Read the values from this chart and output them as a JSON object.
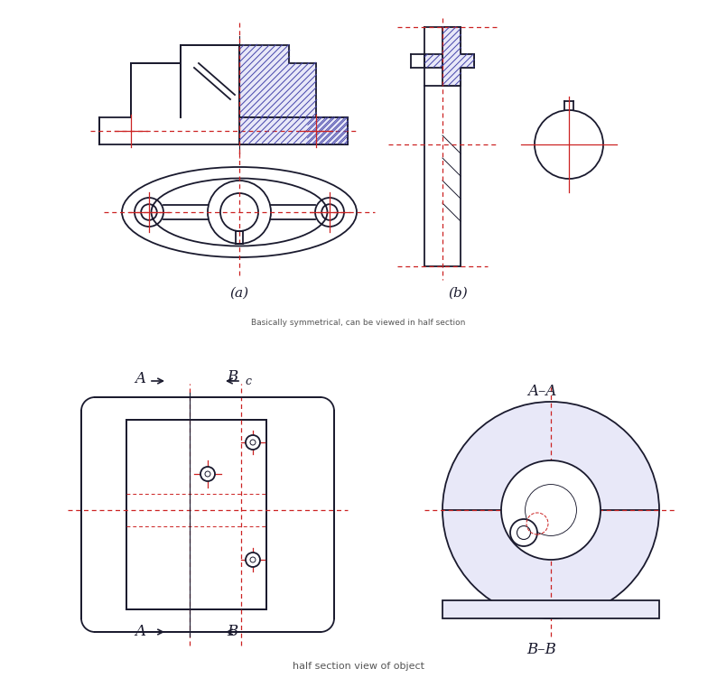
{
  "bg_color": "#ffffff",
  "line_color": "#1a1a2e",
  "hatch_color": "#4444aa",
  "red_line_color": "#cc2222",
  "title_text": "",
  "caption_a": "(a)",
  "caption_b": "(b)",
  "subtitle": "Basically symmetrical, can be viewed in half section",
  "bottom_caption": "half section view of object",
  "label_AA": "A–A",
  "label_BB": "B–B",
  "label_A_top": "A",
  "label_B_top": "B",
  "label_c": "c",
  "label_A_bot": "A",
  "label_B_bot2": "B"
}
